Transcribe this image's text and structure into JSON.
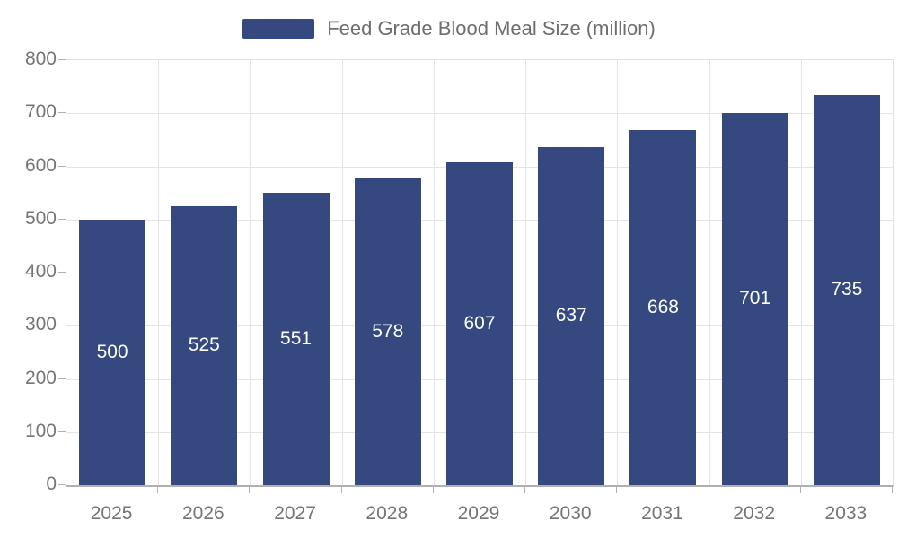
{
  "legend": {
    "label": "Feed Grade Blood Meal Size (million)"
  },
  "chart_data": {
    "type": "bar",
    "title": "Feed Grade Blood Meal Size (million)",
    "categories": [
      "2025",
      "2026",
      "2027",
      "2028",
      "2029",
      "2030",
      "2031",
      "2032",
      "2033"
    ],
    "values": [
      500,
      525,
      551,
      578,
      607,
      637,
      668,
      701,
      735
    ],
    "xlabel": "",
    "ylabel": "",
    "ylim": [
      0,
      800
    ],
    "yticks": [
      0,
      100,
      200,
      300,
      400,
      500,
      600,
      700,
      800
    ],
    "grid": true,
    "legend_position": "top",
    "bar_color": "#354980",
    "bar_label_color": "#ffffff",
    "axis_text_color": "#757575",
    "grid_color": "#e4e4e4",
    "axis_line_color": "#b0b0b0"
  }
}
